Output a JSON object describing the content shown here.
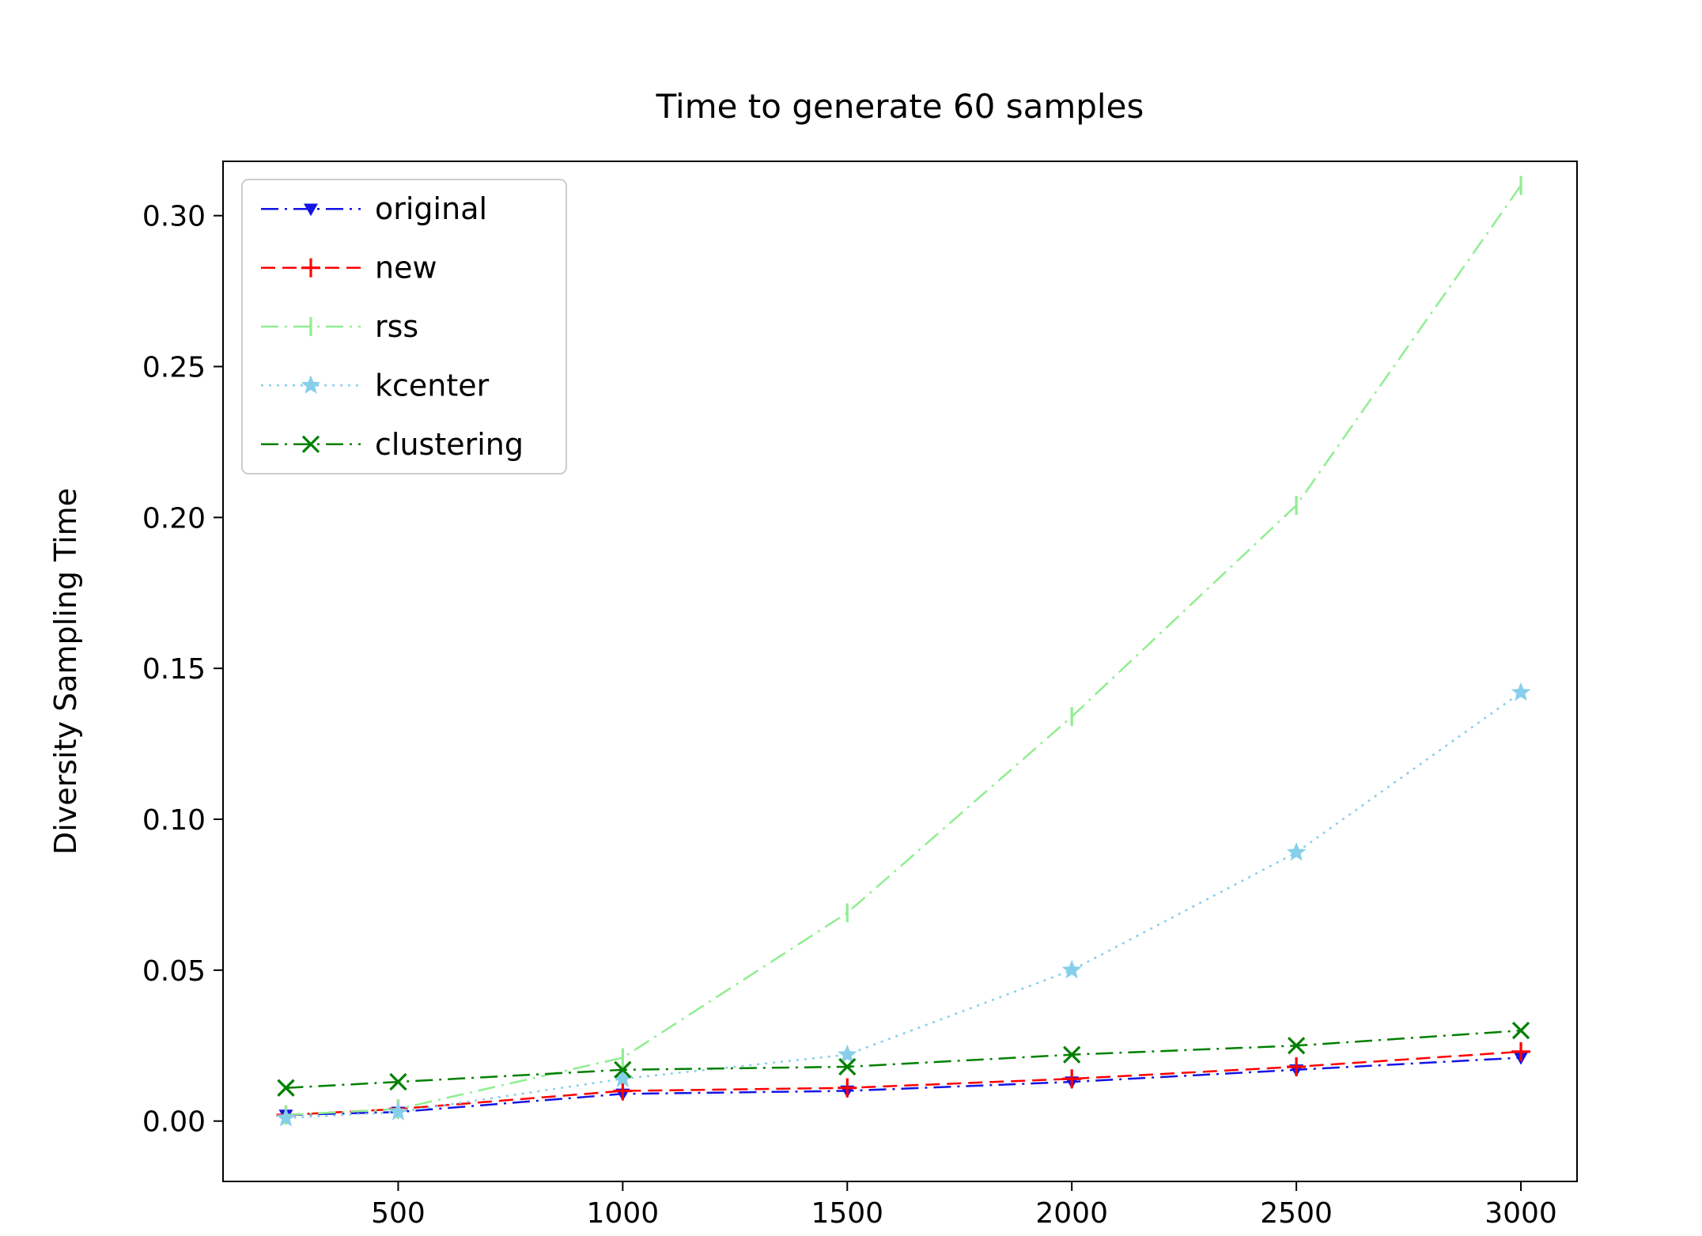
{
  "chart_data": {
    "type": "line",
    "title": "Time to generate 60 samples",
    "xlabel": "",
    "ylabel": "Diversity Sampling Time",
    "x": [
      250,
      500,
      1000,
      1500,
      2000,
      2500,
      3000
    ],
    "series": [
      {
        "name": "original",
        "color": "#1414e6",
        "linestyle": "dashdot",
        "marker": "triangle-down",
        "values": [
          0.002,
          0.003,
          0.009,
          0.01,
          0.013,
          0.017,
          0.021
        ]
      },
      {
        "name": "new",
        "color": "#ff0000",
        "linestyle": "dashed",
        "marker": "plus",
        "values": [
          0.002,
          0.004,
          0.01,
          0.011,
          0.014,
          0.018,
          0.023
        ]
      },
      {
        "name": "rss",
        "color": "#90ee90",
        "linestyle": "dashdot",
        "marker": "vline",
        "values": [
          0.002,
          0.004,
          0.021,
          0.069,
          0.134,
          0.204,
          0.31
        ]
      },
      {
        "name": "kcenter",
        "color": "#87ceeb",
        "linestyle": "dotted",
        "marker": "star",
        "values": [
          0.001,
          0.003,
          0.014,
          0.022,
          0.05,
          0.089,
          0.142
        ]
      },
      {
        "name": "clustering",
        "color": "#008000",
        "linestyle": "dashdot",
        "marker": "x",
        "values": [
          0.011,
          0.013,
          0.017,
          0.018,
          0.022,
          0.025,
          0.03
        ]
      }
    ],
    "xlim": [
      110,
      3125
    ],
    "ylim": [
      -0.02,
      0.318
    ],
    "xticks": [
      500,
      1000,
      1500,
      2000,
      2500,
      3000
    ],
    "xtick_labels": [
      "500",
      "1000",
      "1500",
      "2000",
      "2500",
      "3000"
    ],
    "yticks": [
      0.0,
      0.05,
      0.1,
      0.15,
      0.2,
      0.25,
      0.3
    ],
    "ytick_labels": [
      "0.00",
      "0.05",
      "0.10",
      "0.15",
      "0.20",
      "0.25",
      "0.30"
    ],
    "legend_position": "upper-left",
    "grid": false,
    "axis_color": "#000000",
    "legend_border_color": "#cccccc",
    "legend_background": "#ffffff"
  }
}
